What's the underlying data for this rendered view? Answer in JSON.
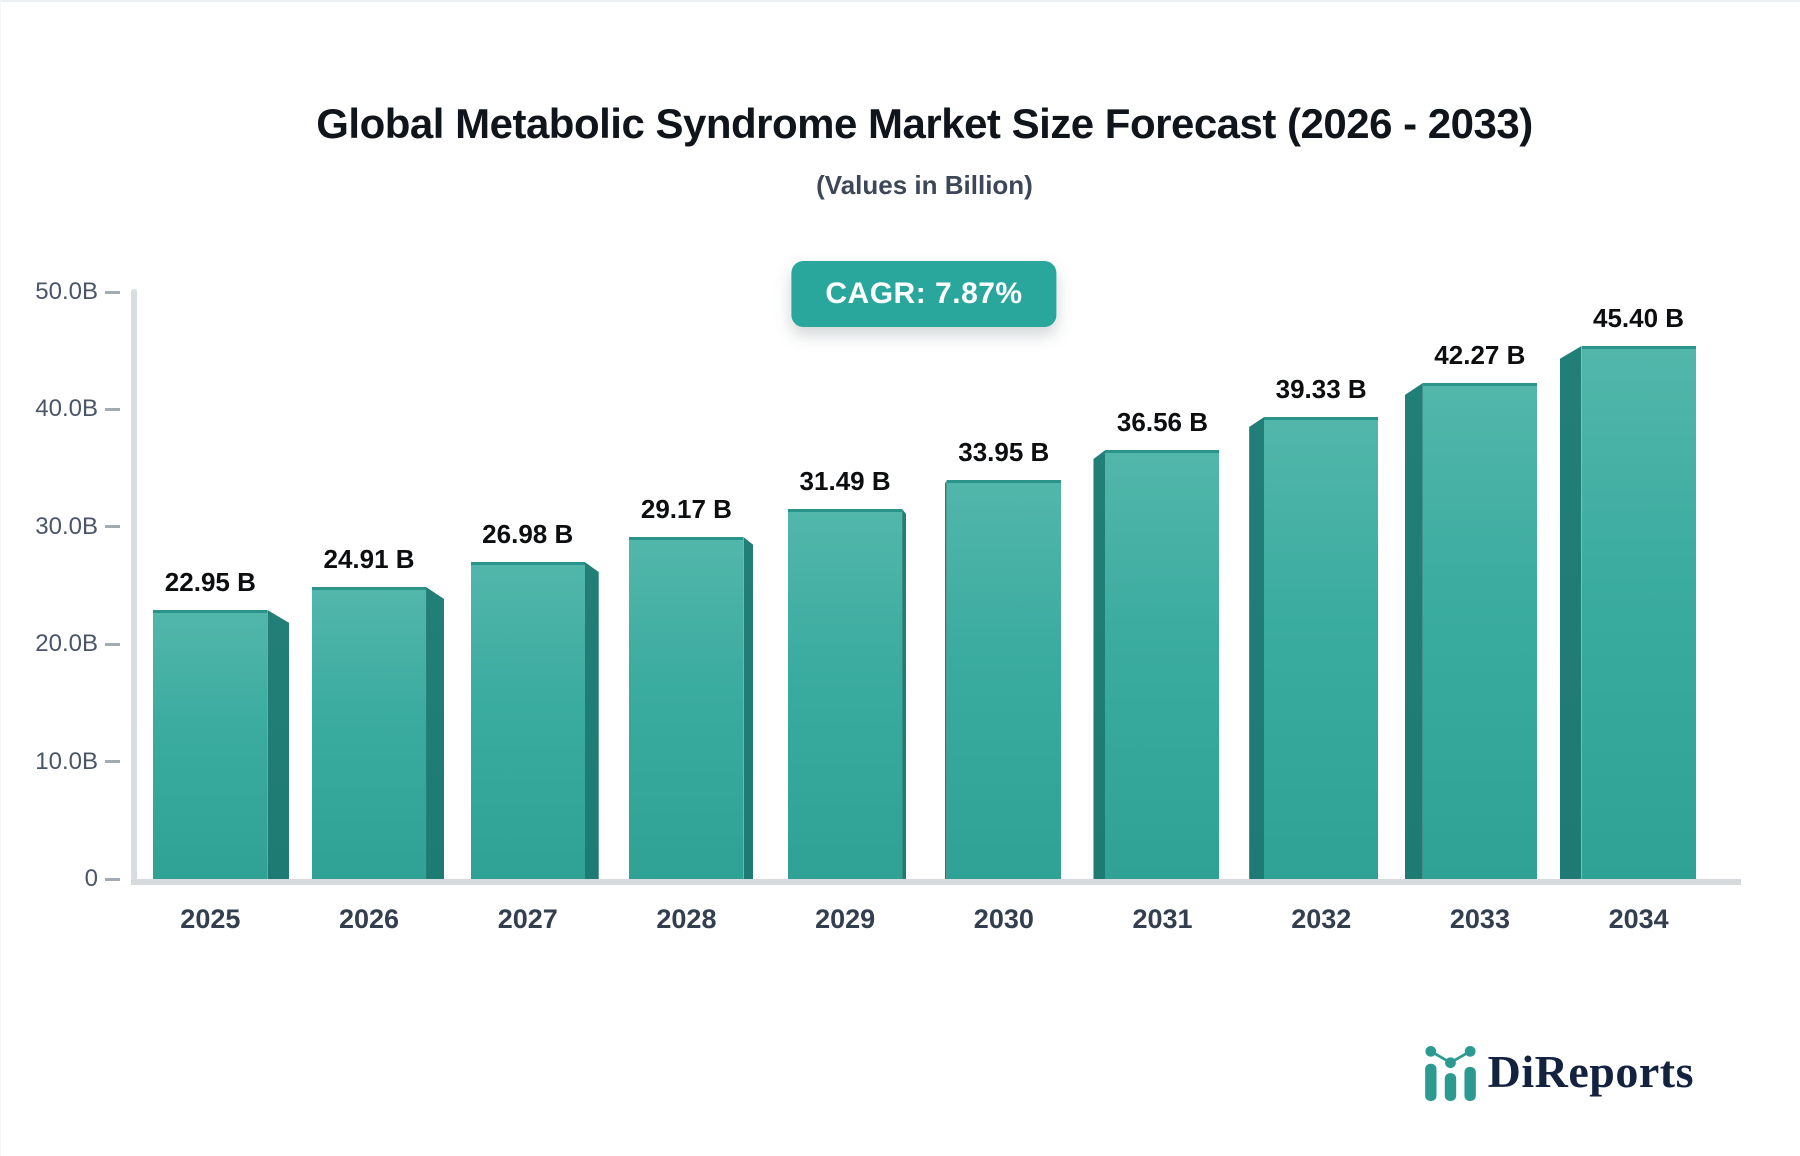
{
  "title": "Global Metabolic Syndrome Market Size Forecast (2026 - 2033)",
  "subtitle": "(Values in Billion)",
  "badge": {
    "label": "CAGR: 7.87%"
  },
  "chart_data": {
    "type": "bar",
    "categories": [
      "2025",
      "2026",
      "2027",
      "2028",
      "2029",
      "2030",
      "2031",
      "2032",
      "2033",
      "2034"
    ],
    "values": [
      22.95,
      24.91,
      26.98,
      29.17,
      31.49,
      33.95,
      36.56,
      39.33,
      42.27,
      45.4
    ],
    "value_labels": [
      "22.95 B",
      "24.91 B",
      "26.98 B",
      "29.17 B",
      "31.49 B",
      "33.95 B",
      "36.56 B",
      "39.33 B",
      "42.27 B",
      "45.40 B"
    ],
    "title": "Global Metabolic Syndrome Market Size Forecast (2026 - 2033)",
    "subtitle": "(Values in Billion)",
    "xlabel": "",
    "ylabel": "",
    "ylim": [
      0,
      50
    ],
    "y_tick_labels": [
      "50.0B",
      "40.0B",
      "30.0B",
      "20.0B",
      "10.0B",
      "0"
    ],
    "grid": false,
    "legend": false,
    "annotations": [
      "CAGR: 7.87%"
    ],
    "style": "3d-perspective-bars"
  },
  "colors": {
    "bar_top": "#52b6ab",
    "bar_bottom": "#2fa195",
    "bar_side": "#1e7b73",
    "badge_bg": "#2aa79d",
    "badge_text": "#ffffff",
    "axis_line": "#d9dde2",
    "tick": "#a2aab4",
    "axis_text": "#4a5568",
    "title_text": "#10151c"
  },
  "logo": {
    "brand": "DiReports",
    "icon": "bar-chart-icon"
  }
}
